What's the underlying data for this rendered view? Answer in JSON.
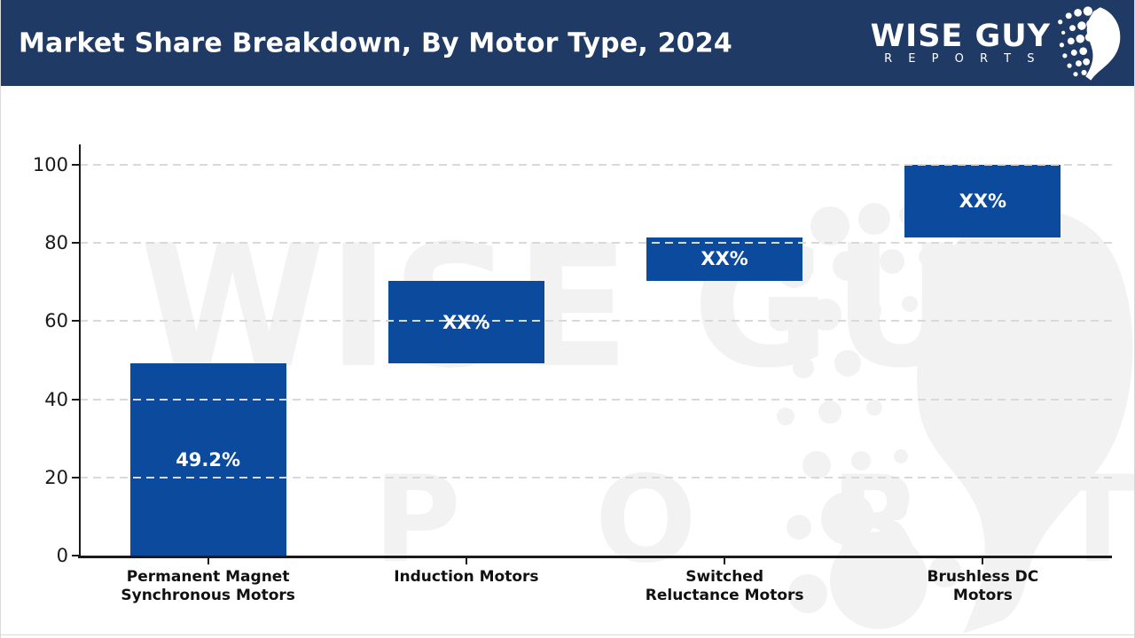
{
  "header": {
    "title": "Market Share Breakdown, By Motor Type, 2024",
    "logo": {
      "line1": "WISE GUY",
      "line2": "R E P O R T S"
    }
  },
  "watermark": {
    "line1": "WISE GUY",
    "line2": "P O R T S"
  },
  "colors": {
    "header_bg": "#1f3a64",
    "bar": "#0c4a9e",
    "grid": "#d9d9d9",
    "axis": "#1a1a1a",
    "watermark": "#f2f2f2",
    "bar_label_text": "#ffffff",
    "tick_text": "#1a1a1a"
  },
  "chart_data": {
    "type": "bar",
    "subtype": "waterfall",
    "title": "Market Share Breakdown, By Motor Type, 2024",
    "xlabel": "",
    "ylabel": "",
    "ylim": [
      0,
      105
    ],
    "yticks": [
      0,
      20,
      40,
      60,
      80,
      100
    ],
    "grid": "horizontal-dashed-over-bars",
    "legend": "none",
    "categories": [
      "Permanent Magnet\nSynchronous Motors",
      "Induction Motors",
      "Switched\nReluctance Motors",
      "Brushless DC\nMotors"
    ],
    "segments": [
      {
        "category": "Permanent Magnet Synchronous Motors",
        "start": 0,
        "end": 49.2,
        "label": "49.2%"
      },
      {
        "category": "Induction Motors",
        "start": 49.2,
        "end": 70.3,
        "label": "XX%"
      },
      {
        "category": "Switched Reluctance Motors",
        "start": 70.3,
        "end": 81.5,
        "label": "XX%"
      },
      {
        "category": "Brushless DC Motors",
        "start": 81.5,
        "end": 100,
        "label": "XX%"
      }
    ]
  }
}
